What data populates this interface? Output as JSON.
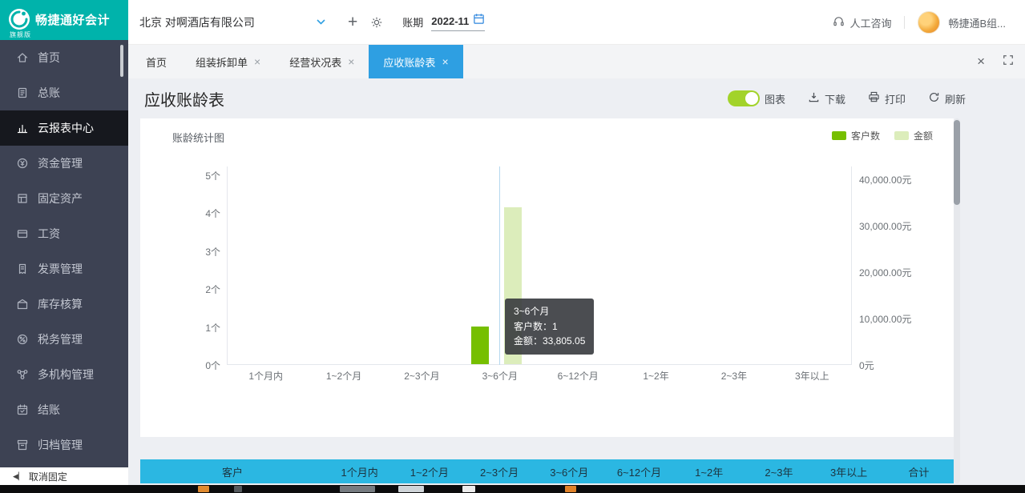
{
  "sidebar": {
    "logo_title": "畅捷通好会计",
    "logo_badge": "旗舰版",
    "items": [
      {
        "label": "首页",
        "icon": "home-icon",
        "active": false
      },
      {
        "label": "总账",
        "icon": "ledger-icon",
        "active": false
      },
      {
        "label": "云报表中心",
        "icon": "report-center-icon",
        "active": true
      },
      {
        "label": "资金管理",
        "icon": "funds-icon",
        "active": false
      },
      {
        "label": "固定资产",
        "icon": "fixed-assets-icon",
        "active": false
      },
      {
        "label": "工资",
        "icon": "salary-icon",
        "active": false
      },
      {
        "label": "发票管理",
        "icon": "invoice-icon",
        "active": false
      },
      {
        "label": "库存核算",
        "icon": "inventory-icon",
        "active": false
      },
      {
        "label": "税务管理",
        "icon": "tax-icon",
        "active": false
      },
      {
        "label": "多机构管理",
        "icon": "multi-org-icon",
        "active": false
      },
      {
        "label": "结账",
        "icon": "closing-icon",
        "active": false
      },
      {
        "label": "归档管理",
        "icon": "archive-icon",
        "active": false
      }
    ],
    "pin_label": "取消固定"
  },
  "topbar": {
    "company": "北京 对啊酒店有限公司",
    "period_label": "账期",
    "period_value": "2022-11",
    "support_label": "人工咨询",
    "user_name": "畅捷通B组..."
  },
  "tabs": [
    {
      "label": "首页",
      "closable": false,
      "active": false
    },
    {
      "label": "组装拆卸单",
      "closable": true,
      "active": false
    },
    {
      "label": "经营状况表",
      "closable": true,
      "active": false
    },
    {
      "label": "应收账龄表",
      "closable": true,
      "active": true
    }
  ],
  "page": {
    "title": "应收账龄表",
    "toggle_label": "图表",
    "download_label": "下载",
    "print_label": "打印",
    "refresh_label": "刷新"
  },
  "chart_data": {
    "type": "bar",
    "title": "账龄统计图",
    "categories": [
      "1个月内",
      "1~2个月",
      "2~3个月",
      "3~6个月",
      "6~12个月",
      "1~2年",
      "2~3年",
      "3年以上"
    ],
    "series": [
      {
        "name": "客户数",
        "yaxis": "left",
        "unit": "个",
        "color": "#76bf00",
        "values": [
          0,
          0,
          0,
          1,
          0,
          0,
          0,
          0
        ]
      },
      {
        "name": "金额",
        "yaxis": "right",
        "unit": "元",
        "color": "#dcedbb",
        "values": [
          0,
          0,
          0,
          33805.05,
          0,
          0,
          0,
          0
        ]
      }
    ],
    "left_axis": {
      "ticks": [
        "0个",
        "1个",
        "2个",
        "3个",
        "4个",
        "5个"
      ],
      "min": 0,
      "max": 5
    },
    "right_axis": {
      "ticks": [
        "0元",
        "10,000.00元",
        "20,000.00元",
        "30,000.00元",
        "40,000.00元"
      ],
      "min": 0,
      "max": 40000
    },
    "legend": [
      "客户数",
      "金额"
    ],
    "legend_position": "top-right",
    "grid": false,
    "highlighted_category": "3~6个月",
    "tooltip": {
      "title": "3~6个月",
      "lines": [
        "客户数：1",
        "金额：33,805.05"
      ]
    }
  },
  "table": {
    "headers": [
      "客户",
      "1个月内",
      "1~2个月",
      "2~3个月",
      "3~6个月",
      "6~12个月",
      "1~2年",
      "2~3年",
      "3年以上",
      "合计"
    ]
  },
  "colors": {
    "brand_teal": "#00b3ab",
    "sidebar_bg": "#3d4253",
    "active_tab_blue": "#2e9fe2",
    "table_header_cyan": "#2bb7e2",
    "toggle_green": "#a2d32a",
    "bar_customers": "#76bf00",
    "bar_amount": "#dcedbb"
  }
}
